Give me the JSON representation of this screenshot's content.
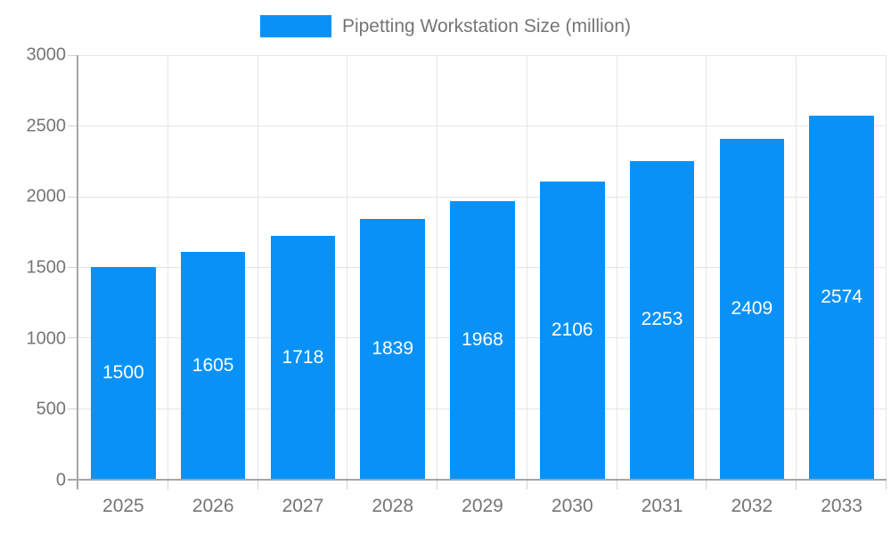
{
  "legend": {
    "label": "Pipetting Workstation Size (million)"
  },
  "chart_data": {
    "type": "bar",
    "title": "Pipetting Workstation Size (million)",
    "categories": [
      "2025",
      "2026",
      "2027",
      "2028",
      "2029",
      "2030",
      "2031",
      "2032",
      "2033"
    ],
    "values": [
      1500,
      1605,
      1718,
      1839,
      1968,
      2106,
      2253,
      2409,
      2574
    ],
    "xlabel": "",
    "ylabel": "",
    "ylim": [
      0,
      3000
    ],
    "yticks": [
      0,
      500,
      1000,
      1500,
      2000,
      2500,
      3000
    ],
    "grid": true,
    "legend_position": "top",
    "value_labels": "centered-inside-bars"
  },
  "colors": {
    "bar_color": "#0892f8",
    "grid_color": "#e6e6e6",
    "axis_color": "#a6a6a6",
    "tick_color": "#d2d2d2",
    "text_color": "#757575",
    "value_label_color": "#ffffff",
    "bg_color": "#ffffff"
  }
}
